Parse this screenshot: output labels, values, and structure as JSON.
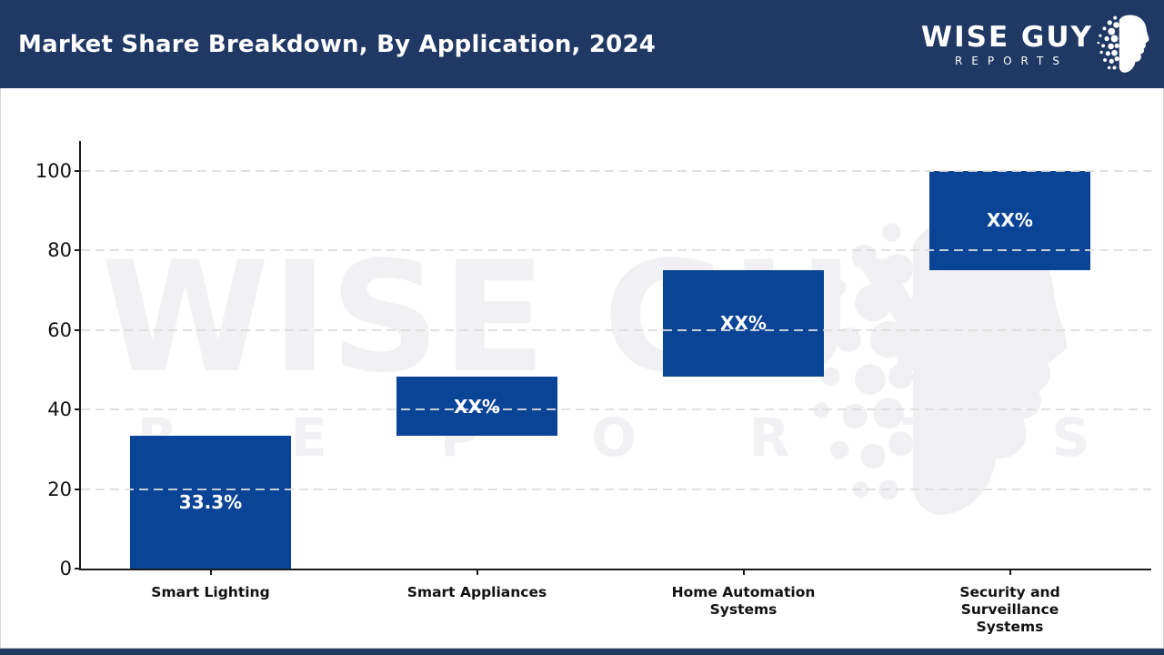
{
  "header": {
    "title": "Market Share Breakdown, By Application, 2024",
    "logo": {
      "line1": "WISE GUY",
      "line2": "REPORTS"
    }
  },
  "watermark": {
    "line1": "WISE GUY",
    "line2": "REPORTS"
  },
  "colors": {
    "header_bg": "#1f3864",
    "bar": "#0a4496",
    "grid": "#dcdcdc",
    "axis": "#1a1a1a",
    "bar_value_label": "#ffffff",
    "watermark": "#f1f1f4"
  },
  "chart_data": {
    "type": "bar",
    "subtype": "floating-waterfall",
    "title": "Market Share Breakdown, By Application, 2024",
    "categories": [
      "Smart Lighting",
      "Smart Appliances",
      "Home Automation Systems",
      "Security and Surveillance Systems"
    ],
    "category_lines": [
      [
        "Smart Lighting"
      ],
      [
        "Smart Appliances"
      ],
      [
        "Home Automation",
        "Systems"
      ],
      [
        "Security and",
        "Surveillance",
        "Systems"
      ]
    ],
    "segments": [
      {
        "category": "Smart Lighting",
        "start": 0,
        "end": 33.3,
        "label": "33.3%"
      },
      {
        "category": "Smart Appliances",
        "start": 33.3,
        "end": 48.3,
        "label": "XX%"
      },
      {
        "category": "Home Automation Systems",
        "start": 48.3,
        "end": 75,
        "label": "XX%"
      },
      {
        "category": "Security and Surveillance Systems",
        "start": 75,
        "end": 100,
        "label": "XX%"
      }
    ],
    "xlabel": "",
    "ylabel": "",
    "ylim": [
      0,
      100
    ],
    "yticks": [
      0,
      20,
      40,
      60,
      80,
      100
    ],
    "grid": "horizontal-dashed",
    "legend": "none"
  }
}
